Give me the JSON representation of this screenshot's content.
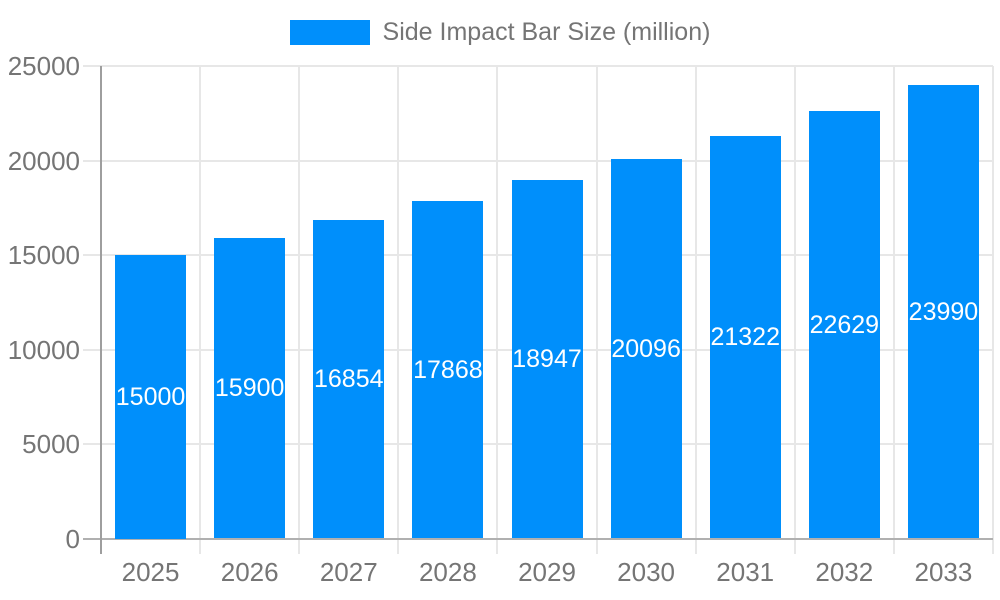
{
  "chart_data": {
    "type": "bar",
    "title": "Side Impact Bar Size (million)",
    "categories": [
      "2025",
      "2026",
      "2027",
      "2028",
      "2029",
      "2030",
      "2031",
      "2032",
      "2033"
    ],
    "values": [
      15000,
      15900,
      16854,
      17868,
      18947,
      20096,
      21322,
      22629,
      23990
    ],
    "series": [
      {
        "name": "Side Impact Bar Size (million)",
        "values": [
          15000,
          15900,
          16854,
          17868,
          18947,
          20096,
          21322,
          22629,
          23990
        ]
      }
    ],
    "xlabel": "",
    "ylabel": "",
    "ylim": [
      0,
      25000
    ],
    "yticks": [
      0,
      5000,
      10000,
      15000,
      20000,
      25000
    ],
    "ytick_labels": [
      "0",
      "5000",
      "10000",
      "15000",
      "20000",
      "25000"
    ],
    "grid": true,
    "legend_position": "top",
    "bar_labels_inside": true,
    "colors": {
      "bar": "#008FFB",
      "bar_label_text": "#ffffff",
      "tick_text": "#757575",
      "legend_text": "#757575",
      "gridline": "#e7e7e7",
      "x_axis_line": "#b0b0b0",
      "y_axis_line": "#9e9e9e",
      "background": "#ffffff"
    }
  }
}
